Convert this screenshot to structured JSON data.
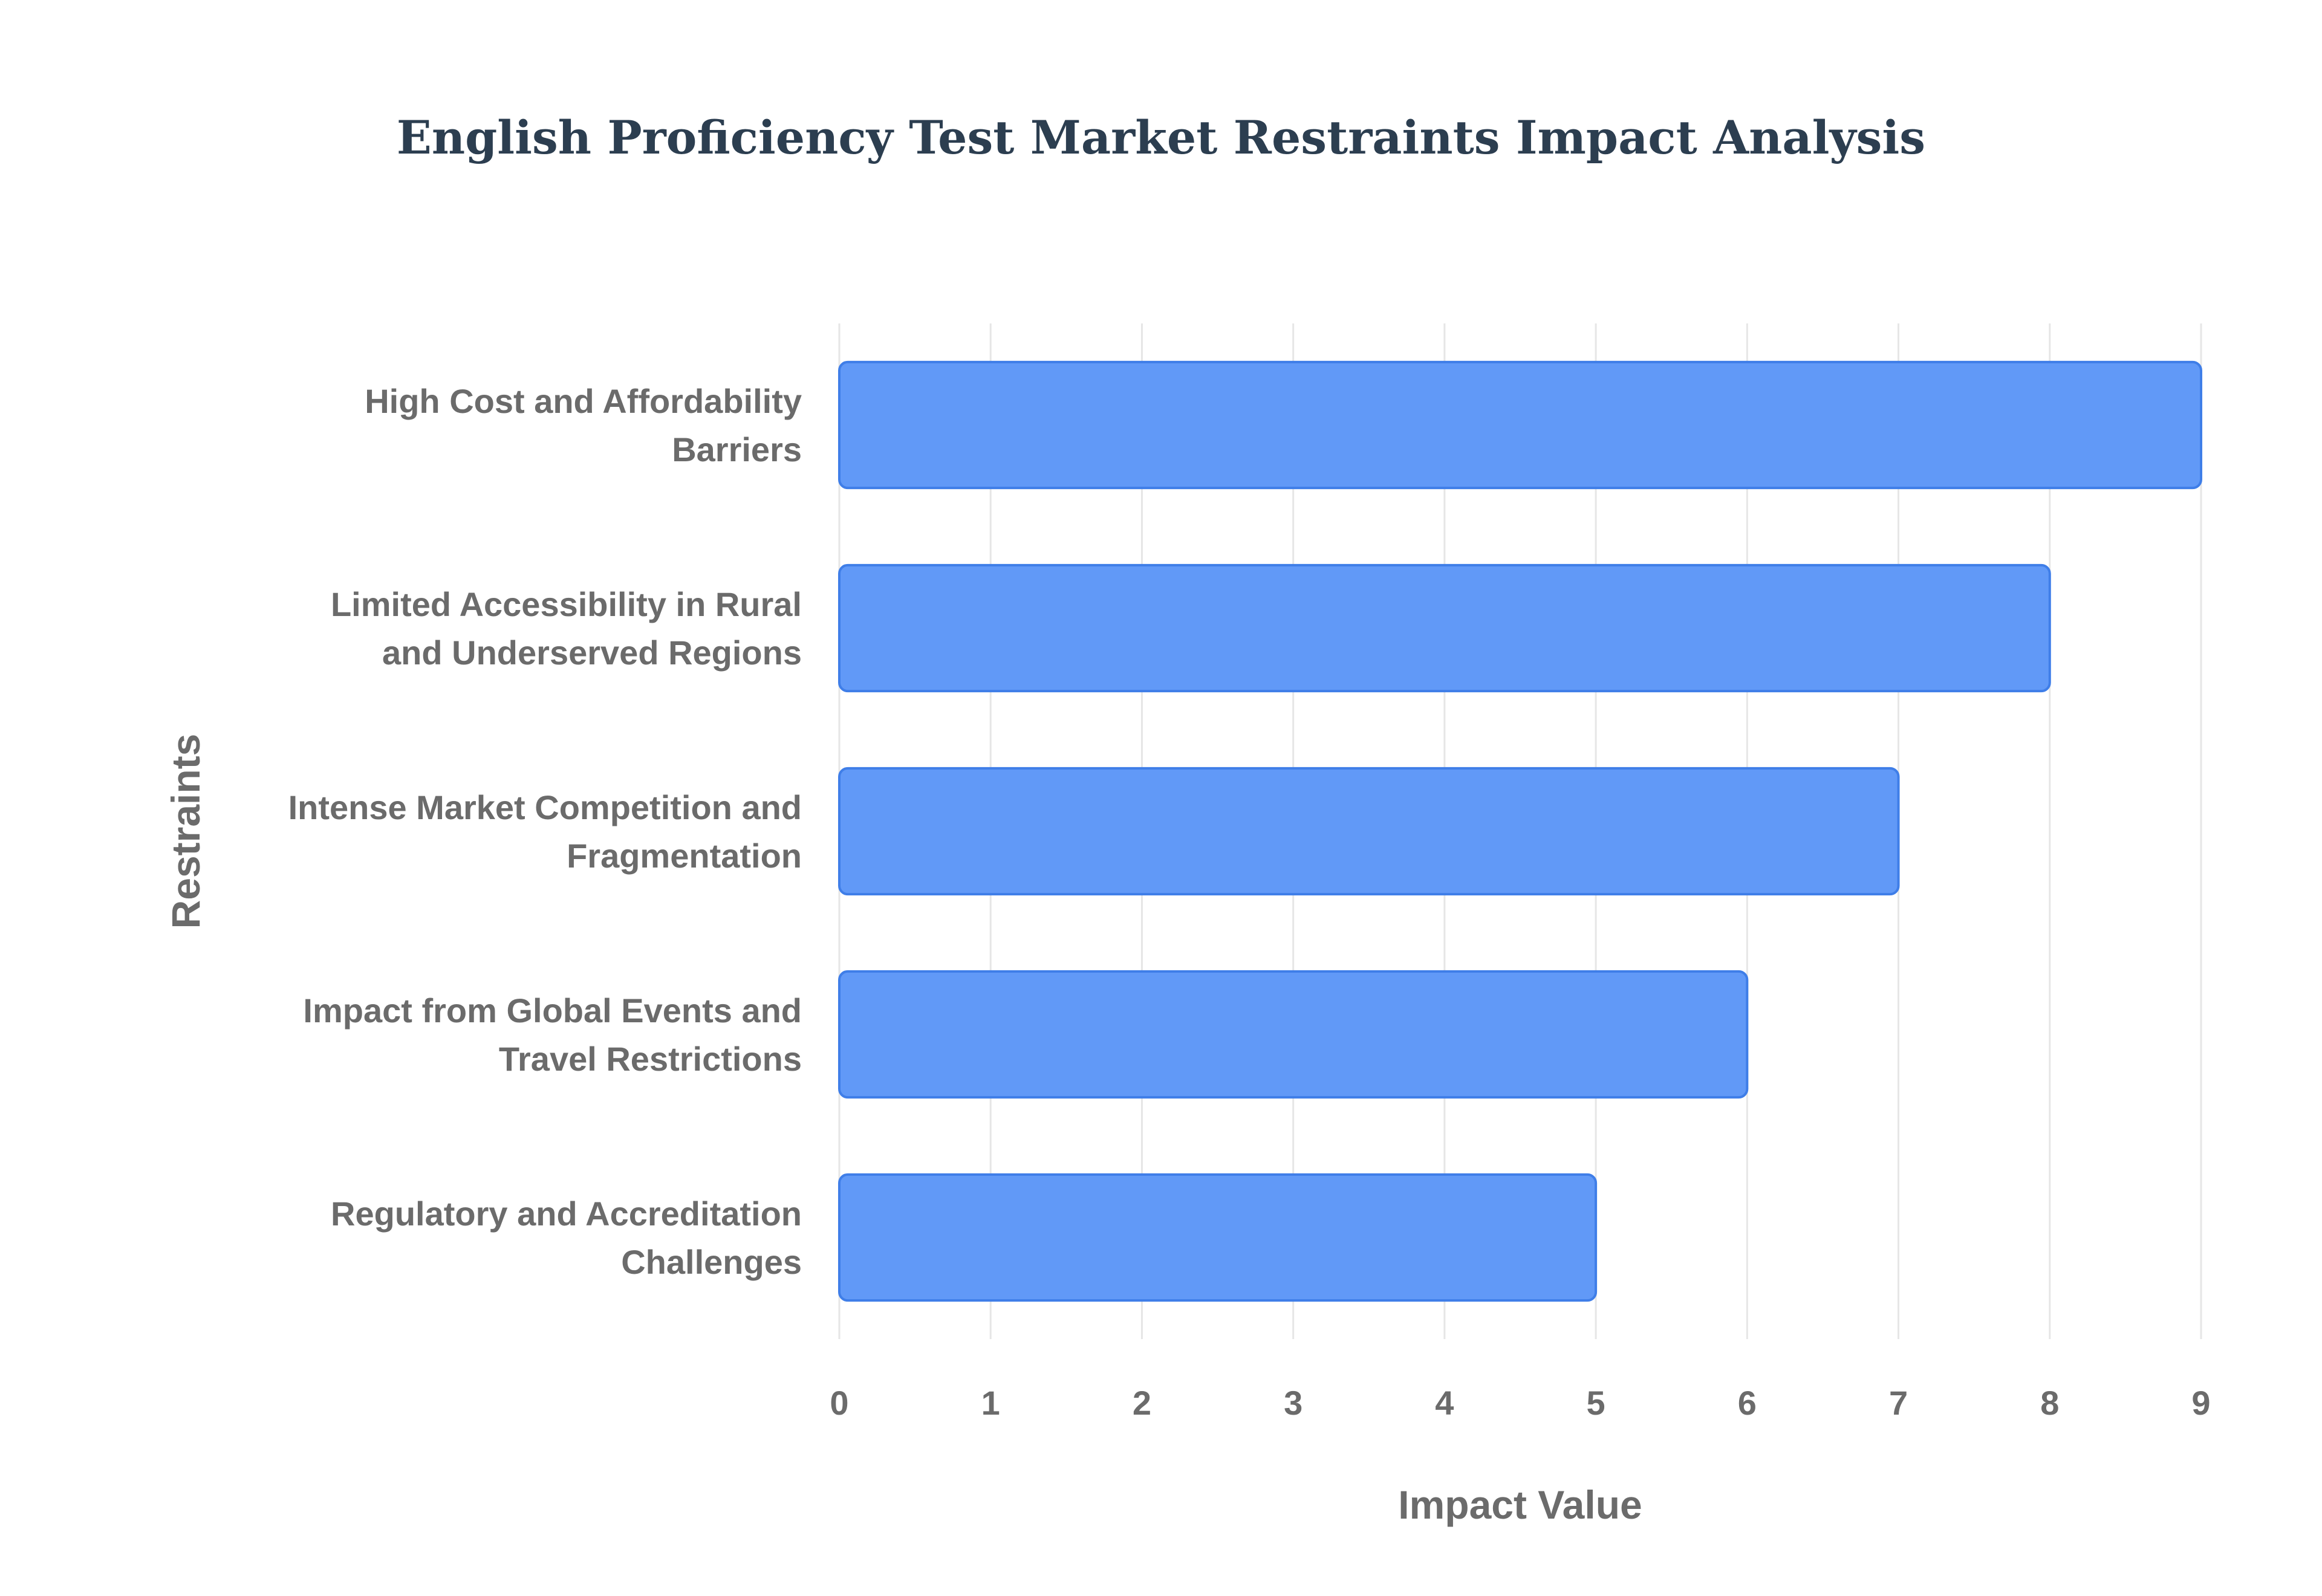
{
  "chart_data": {
    "type": "bar",
    "orientation": "horizontal",
    "title": "English Proficiency Test Market Restraints Impact Analysis",
    "xlabel": "Impact Value",
    "ylabel": "Restraints",
    "xlim": [
      0,
      9
    ],
    "xticks": [
      0,
      1,
      2,
      3,
      4,
      5,
      6,
      7,
      8,
      9
    ],
    "grid": true,
    "legend": "none",
    "bar_color": "#6199f7",
    "bar_edge_color": "#3f7ee8",
    "categories": [
      [
        "High Cost and Affordability",
        "Barriers"
      ],
      [
        "Limited Accessibility in Rural",
        "and Underserved Regions"
      ],
      [
        "Intense Market Competition and",
        "Fragmentation"
      ],
      [
        "Impact from Global Events and",
        "Travel Restrictions"
      ],
      [
        "Regulatory and Accreditation",
        "Challenges"
      ]
    ],
    "values": [
      9,
      8,
      7,
      6,
      5
    ]
  }
}
